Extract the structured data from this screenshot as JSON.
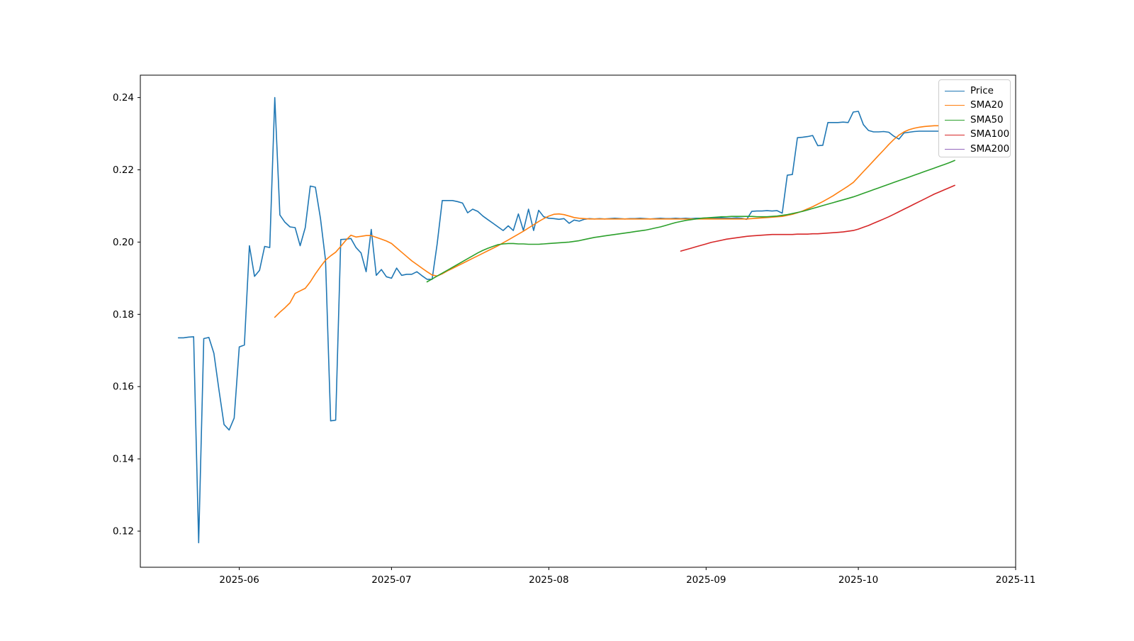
{
  "chart_data": {
    "type": "line",
    "title": "",
    "xlabel": "",
    "ylabel": "",
    "grid": false,
    "background_color": "#ffffff",
    "x_axis": {
      "range": [
        "2025-05-12T12:00:00Z",
        "2025-11-01T00:00:00Z"
      ],
      "tick_dates": [
        "2025-06-01",
        "2025-07-01",
        "2025-08-01",
        "2025-09-01",
        "2025-10-01",
        "2025-11-01"
      ],
      "tick_labels": [
        "2025-06",
        "2025-07",
        "2025-08",
        "2025-09",
        "2025-10",
        "2025-11"
      ]
    },
    "y_axis": {
      "range": [
        0.11,
        0.2462
      ],
      "ticks": [
        0.12,
        0.14,
        0.16,
        0.18,
        0.2,
        0.22,
        0.24
      ],
      "tick_labels": [
        "0.12",
        "0.14",
        "0.16",
        "0.18",
        "0.20",
        "0.22",
        "0.24"
      ]
    },
    "legend": {
      "position": "upper right",
      "entries": [
        {
          "label": "Price",
          "color": "#1f77b4"
        },
        {
          "label": "SMA20",
          "color": "#ff7f0e"
        },
        {
          "label": "SMA50",
          "color": "#2ca02c"
        },
        {
          "label": "SMA100",
          "color": "#d62728"
        },
        {
          "label": "SMA200",
          "color": "#9467bd"
        }
      ]
    },
    "series": [
      {
        "name": "Price",
        "color": "#1f77b4",
        "start_date": "2025-05-20",
        "cadence_days": 1,
        "values": [
          0.1735,
          0.1735,
          0.1737,
          0.1738,
          0.1168,
          0.1733,
          0.1736,
          0.1692,
          0.159,
          0.1495,
          0.148,
          0.1513,
          0.171,
          0.1715,
          0.199,
          0.1905,
          0.1922,
          0.1988,
          0.1985,
          0.24,
          0.2075,
          0.2055,
          0.2042,
          0.204,
          0.199,
          0.204,
          0.2155,
          0.2152,
          0.2065,
          0.195,
          0.1505,
          0.1507,
          0.2007,
          0.2008,
          0.201,
          0.1985,
          0.197,
          0.1918,
          0.2035,
          0.1908,
          0.1924,
          0.1904,
          0.19,
          0.1928,
          0.1908,
          0.1911,
          0.1911,
          0.1918,
          0.1907,
          0.1897,
          0.1897,
          0.1995,
          0.2115,
          0.2115,
          0.2115,
          0.2112,
          0.2108,
          0.2081,
          0.2091,
          0.2085,
          0.2072,
          0.2062,
          0.2052,
          0.2042,
          0.2032,
          0.2045,
          0.2032,
          0.2078,
          0.2032,
          0.2091,
          0.2032,
          0.2088,
          0.207,
          0.2066,
          0.2065,
          0.2063,
          0.2065,
          0.2052,
          0.2061,
          0.2058,
          0.2063,
          0.2065,
          0.2064,
          0.2065,
          0.2064,
          0.2065,
          0.2066,
          0.2065,
          0.2064,
          0.2065,
          0.2065,
          0.2066,
          0.2065,
          0.2064,
          0.2065,
          0.2066,
          0.2065,
          0.2065,
          0.2066,
          0.2065,
          0.2066,
          0.2065,
          0.2066,
          0.2066,
          0.2067,
          0.2066,
          0.2066,
          0.2067,
          0.2066,
          0.2066,
          0.2067,
          0.2066,
          0.2063,
          0.2085,
          0.2086,
          0.2086,
          0.2087,
          0.2086,
          0.2087,
          0.208,
          0.2185,
          0.2187,
          0.2289,
          0.229,
          0.2292,
          0.2295,
          0.2267,
          0.2268,
          0.2331,
          0.2331,
          0.2331,
          0.2332,
          0.2331,
          0.236,
          0.2362,
          0.2325,
          0.2309,
          0.2305,
          0.2305,
          0.2306,
          0.2304,
          0.2293,
          0.2285,
          0.2302,
          0.2304,
          0.2306,
          0.2307,
          0.2307,
          0.2307,
          0.2307,
          0.2307,
          0.2307,
          0.2307,
          0.2308
        ]
      },
      {
        "name": "SMA20",
        "color": "#ff7f0e",
        "start_date": "2025-06-08",
        "cadence_days": 1,
        "values": [
          0.1792,
          0.1806,
          0.1818,
          0.1832,
          0.1858,
          0.1865,
          0.1872,
          0.189,
          0.1912,
          0.1932,
          0.195,
          0.1962,
          0.1972,
          0.1988,
          0.2005,
          0.2019,
          0.2014,
          0.2016,
          0.2018,
          0.2018,
          0.2013,
          0.2008,
          0.2003,
          0.1996,
          0.1984,
          0.1972,
          0.196,
          0.1948,
          0.1938,
          0.1928,
          0.1918,
          0.1909,
          0.1906,
          0.1912,
          0.192,
          0.1927,
          0.1934,
          0.1941,
          0.1948,
          0.1955,
          0.1962,
          0.1969,
          0.1976,
          0.1983,
          0.199,
          0.1998,
          0.2006,
          0.2014,
          0.2022,
          0.203,
          0.2039,
          0.2048,
          0.2057,
          0.2065,
          0.2072,
          0.2077,
          0.2078,
          0.2076,
          0.2072,
          0.2068,
          0.2066,
          0.2065,
          0.2064,
          0.2064,
          0.2064,
          0.2064,
          0.2064,
          0.2064,
          0.2064,
          0.2064,
          0.2064,
          0.2064,
          0.2064,
          0.2064,
          0.2064,
          0.2064,
          0.2064,
          0.2064,
          0.2064,
          0.2064,
          0.2064,
          0.2064,
          0.2064,
          0.2064,
          0.2064,
          0.2064,
          0.2064,
          0.2064,
          0.2064,
          0.2064,
          0.2064,
          0.2064,
          0.2064,
          0.2064,
          0.2065,
          0.2066,
          0.2067,
          0.2068,
          0.2069,
          0.207,
          0.2071,
          0.2074,
          0.2077,
          0.2081,
          0.2086,
          0.2092,
          0.2098,
          0.2105,
          0.2112,
          0.212,
          0.2128,
          0.2137,
          0.2146,
          0.2155,
          0.2165,
          0.218,
          0.2195,
          0.221,
          0.2225,
          0.224,
          0.2255,
          0.227,
          0.2284,
          0.2296,
          0.2305,
          0.2311,
          0.2315,
          0.2318,
          0.232,
          0.2321,
          0.2322,
          0.2322,
          0.2322,
          0.2322,
          0.2322
        ]
      },
      {
        "name": "SMA50",
        "color": "#2ca02c",
        "start_date": "2025-07-08",
        "cadence_days": 1,
        "values": [
          0.189,
          0.1898,
          0.1906,
          0.1914,
          0.1922,
          0.193,
          0.1938,
          0.1946,
          0.1954,
          0.1962,
          0.197,
          0.1977,
          0.1983,
          0.1988,
          0.1993,
          0.1995,
          0.1996,
          0.1996,
          0.1995,
          0.1995,
          0.1994,
          0.1994,
          0.1994,
          0.1995,
          0.1996,
          0.1997,
          0.1998,
          0.1999,
          0.2,
          0.2002,
          0.2004,
          0.2007,
          0.201,
          0.2013,
          0.2015,
          0.2017,
          0.2019,
          0.2021,
          0.2023,
          0.2025,
          0.2027,
          0.2029,
          0.2031,
          0.2033,
          0.2036,
          0.2039,
          0.2042,
          0.2046,
          0.205,
          0.2054,
          0.2057,
          0.206,
          0.2062,
          0.2064,
          0.2066,
          0.2067,
          0.2068,
          0.2069,
          0.207,
          0.207,
          0.2071,
          0.2071,
          0.2071,
          0.2071,
          0.2071,
          0.207,
          0.207,
          0.207,
          0.2071,
          0.2072,
          0.2074,
          0.2076,
          0.2079,
          0.2082,
          0.2085,
          0.2089,
          0.2093,
          0.2097,
          0.2101,
          0.2105,
          0.2109,
          0.2113,
          0.2117,
          0.2121,
          0.2125,
          0.213,
          0.2135,
          0.214,
          0.2145,
          0.215,
          0.2155,
          0.216,
          0.2165,
          0.217,
          0.2175,
          0.218,
          0.2185,
          0.219,
          0.2195,
          0.22,
          0.2205,
          0.221,
          0.2215,
          0.222,
          0.2226
        ]
      },
      {
        "name": "SMA100",
        "color": "#d62728",
        "start_date": "2025-08-27",
        "cadence_days": 1,
        "values": [
          0.1975,
          0.1979,
          0.1983,
          0.1987,
          0.1991,
          0.1995,
          0.1999,
          0.2002,
          0.2005,
          0.2008,
          0.201,
          0.2012,
          0.2014,
          0.2016,
          0.2017,
          0.2018,
          0.2019,
          0.202,
          0.2021,
          0.2021,
          0.2021,
          0.2021,
          0.2021,
          0.2022,
          0.2022,
          0.2022,
          0.2023,
          0.2023,
          0.2024,
          0.2025,
          0.2026,
          0.2027,
          0.2028,
          0.203,
          0.2032,
          0.2036,
          0.2041,
          0.2046,
          0.2052,
          0.2058,
          0.2064,
          0.207,
          0.2077,
          0.2084,
          0.2091,
          0.2098,
          0.2105,
          0.2112,
          0.2119,
          0.2126,
          0.2133,
          0.2139,
          0.2145,
          0.2151,
          0.2157
        ]
      },
      {
        "name": "SMA200",
        "color": "#9467bd",
        "start_date": "2025-05-20",
        "cadence_days": 1,
        "values": []
      }
    ]
  }
}
